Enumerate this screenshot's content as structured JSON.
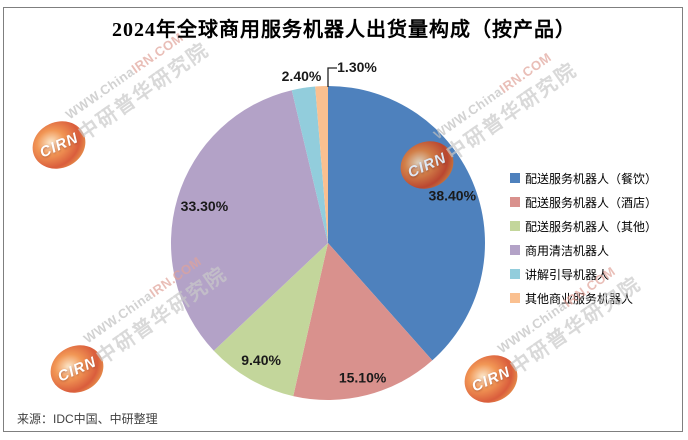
{
  "title": "2024年全球商用服务机器人出货量构成（按产品）",
  "source": "来源：IDC中国、中研整理",
  "watermark": {
    "logo": "CIRN",
    "line1_gray": "WWW.China",
    "line1_red": "IRN.COM",
    "line2": "中研普华研究院"
  },
  "chart_data": {
    "type": "pie",
    "title": "2024年全球商用服务机器人出货量构成（按产品）",
    "categories": [
      "配送服务机器人（餐饮）",
      "配送服务机器人（酒店）",
      "配送服务机器人（其他）",
      "商用清洁机器人",
      "讲解引导机器人",
      "其他商业服务机器人"
    ],
    "values": [
      38.4,
      15.1,
      9.4,
      33.3,
      2.4,
      1.3
    ],
    "labels": [
      "38.40%",
      "15.10%",
      "9.40%",
      "33.30%",
      "2.40%",
      "1.30%"
    ],
    "colors": [
      "#4E81BD",
      "#D9918D",
      "#C3D69B",
      "#B3A2C7",
      "#92CDDC",
      "#FAC090"
    ],
    "legend_position": "right",
    "start_angle_deg": 0,
    "direction": "clockwise"
  }
}
